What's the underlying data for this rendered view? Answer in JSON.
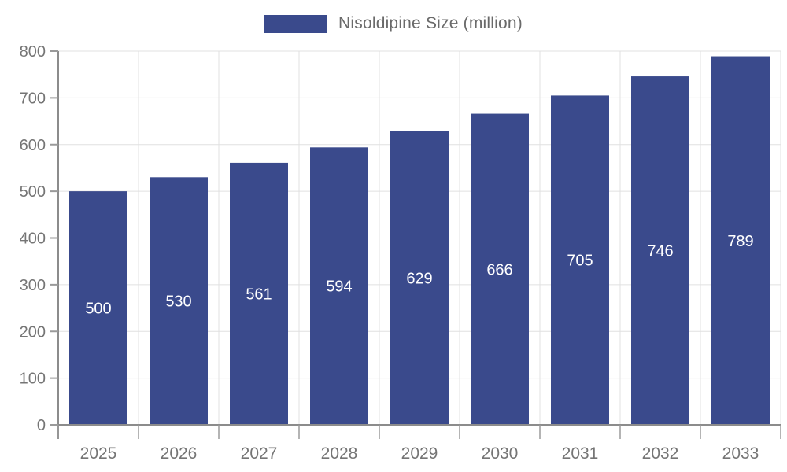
{
  "legend": {
    "label": "Nisoldipine Size (million)"
  },
  "chart_data": {
    "type": "bar",
    "title": "Nisoldipine Size (million)",
    "categories": [
      "2025",
      "2026",
      "2027",
      "2028",
      "2029",
      "2030",
      "2031",
      "2032",
      "2033"
    ],
    "values": [
      500,
      530,
      561,
      594,
      629,
      666,
      705,
      746,
      789
    ],
    "xlabel": "",
    "ylabel": "",
    "ylim": [
      0,
      800
    ],
    "ytick_step": 100,
    "ytick_labels": [
      "0",
      "100",
      "200",
      "300",
      "400",
      "500",
      "600",
      "700",
      "800"
    ],
    "grid": true,
    "legend_position": "top",
    "colors": {
      "bar": "#3A4A8C",
      "value_label": "#ffffff",
      "axis_text": "#757575",
      "axis_line": "#8c8c8c",
      "tick_line": "#9a9a9a",
      "grid_line": "#e0e0e0",
      "legend_text": "#6a6a6a",
      "background": "#ffffff"
    }
  }
}
